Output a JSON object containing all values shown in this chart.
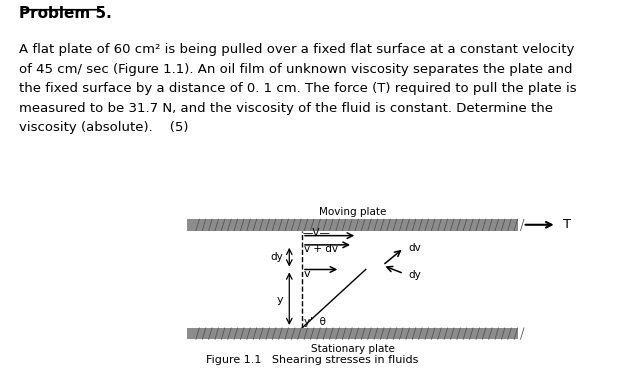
{
  "title": "Problem 5.",
  "line1": "A flat plate of 60 cm² is being pulled over a fixed flat surface at a constant velocity",
  "line2": "of 45 cm/ sec (Figure 1.1). An oil film of unknown viscosity separates the plate and",
  "line3": "the fixed surface by a distance of 0. 1 cm. The force (T) required to pull the plate is",
  "line4": "measured to be 31.7 N, and the viscosity of the fluid is constant. Determine the",
  "line5": "viscosity (absolute).    (5)",
  "fig_caption": "Figure 1.1   Shearing stresses in fluids",
  "moving_plate_label": "Moving plate",
  "stationary_plate_label": "Stationary plate",
  "arrow_label": "T",
  "bg_color": "#ffffff",
  "text_color": "#000000",
  "plate_color": "#8c8c8c",
  "plate_dark": "#555555"
}
